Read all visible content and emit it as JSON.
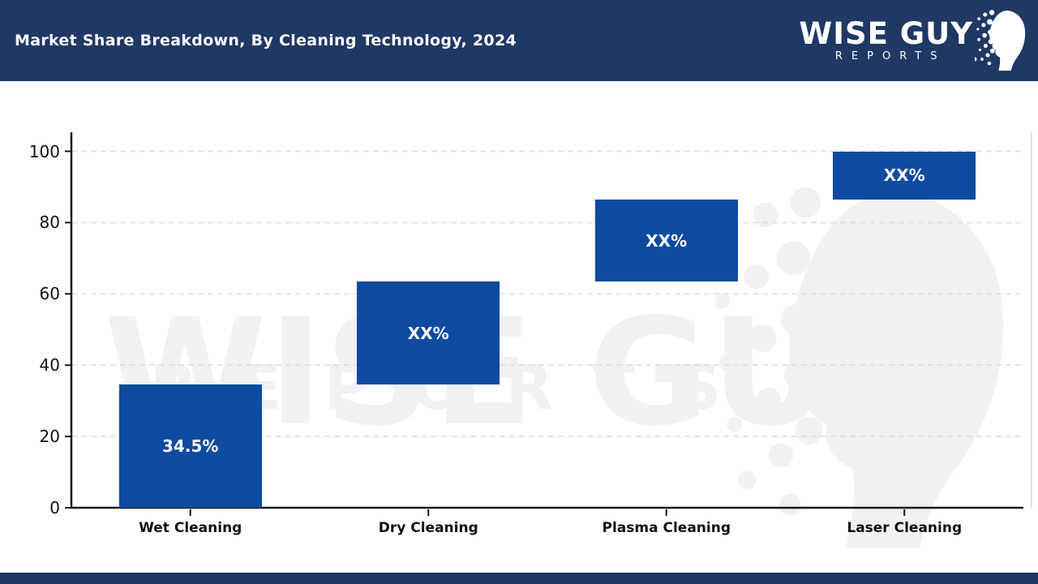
{
  "header": {
    "title": "Market Share Breakdown, By Cleaning Technology, 2024",
    "logo": {
      "line1": "WISE GUY",
      "line2": "REPORTS"
    }
  },
  "watermark": {
    "line1": "WISE GUY",
    "line2": "REPORTS"
  },
  "colors": {
    "header_bg": "#1f3864",
    "footer_bg": "#1f3864",
    "bar": "#0c4b9f",
    "bar_label": "#ffffff",
    "gridline": "#dedede",
    "axis": "#1a1a1a",
    "right_spine": "#d8d8d8",
    "watermark": "#f1f1f4"
  },
  "chart_data": {
    "type": "bar",
    "subtype": "waterfall",
    "title": "Market Share Breakdown, By Cleaning Technology, 2024",
    "categories": [
      "Wet Cleaning",
      "Dry Cleaning",
      "Plasma Cleaning",
      "Laser Cleaning"
    ],
    "segments": [
      {
        "category": "Wet Cleaning",
        "start": 0,
        "end": 34.5,
        "label": "34.5%"
      },
      {
        "category": "Dry Cleaning",
        "start": 34.5,
        "end": 63.4,
        "label": "XX%"
      },
      {
        "category": "Plasma Cleaning",
        "start": 63.4,
        "end": 86.4,
        "label": "XX%"
      },
      {
        "category": "Laser Cleaning",
        "start": 86.4,
        "end": 100,
        "label": "XX%"
      }
    ],
    "yticks": [
      0,
      20,
      40,
      60,
      80,
      100
    ],
    "ylim": [
      0,
      105
    ],
    "xlabel": "",
    "ylabel": "",
    "grid": "dashed-horizontal",
    "legend": "none"
  }
}
